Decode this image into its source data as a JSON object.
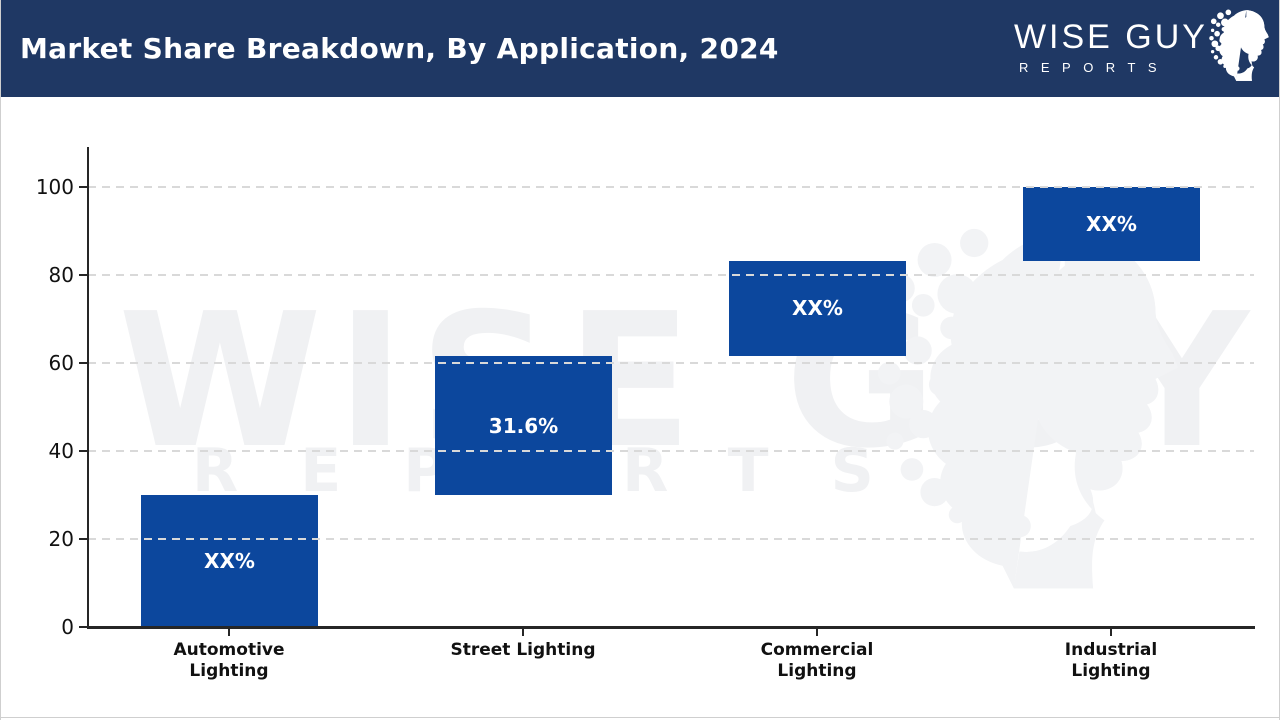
{
  "header": {
    "title": "Market Share Breakdown, By Application, 2024",
    "logo": {
      "name": "WISE GUY",
      "subtitle": "REPORTS"
    },
    "bg_color": "#1f3864"
  },
  "watermark": {
    "line1": "WISE GUY",
    "line2": "REPORTS"
  },
  "chart_data": {
    "type": "bar",
    "variant": "floating-waterfall",
    "title": "Market Share Breakdown, By Application, 2024",
    "categories": [
      "Automotive Lighting",
      "Street Lighting",
      "Commercial Lighting",
      "Industrial Lighting"
    ],
    "category_label_lines": [
      [
        "Automotive",
        "Lighting"
      ],
      [
        "Street Lighting"
      ],
      [
        "Commercial",
        "Lighting"
      ],
      [
        "Industrial",
        "Lighting"
      ]
    ],
    "segments": [
      {
        "category": "Automotive Lighting",
        "start": 0,
        "end": 30,
        "value_label": "XX%"
      },
      {
        "category": "Street Lighting",
        "start": 30,
        "end": 61.6,
        "value_label": "31.6%"
      },
      {
        "category": "Commercial Lighting",
        "start": 61.6,
        "end": 83.2,
        "value_label": "XX%"
      },
      {
        "category": "Industrial Lighting",
        "start": 83.2,
        "end": 100,
        "value_label": "XX%"
      }
    ],
    "xlabel": "",
    "ylabel": "",
    "ylim": [
      0,
      100
    ],
    "yticks": [
      0,
      20,
      40,
      60,
      80,
      100
    ],
    "grid": {
      "horizontal": true,
      "style": "dashed",
      "color": "#d9d9d9",
      "drawn_over_bars": true
    },
    "legend": "none",
    "bar_color": "#0c479d",
    "bar_label_color": "#ffffff",
    "axis_color": "#262626"
  }
}
